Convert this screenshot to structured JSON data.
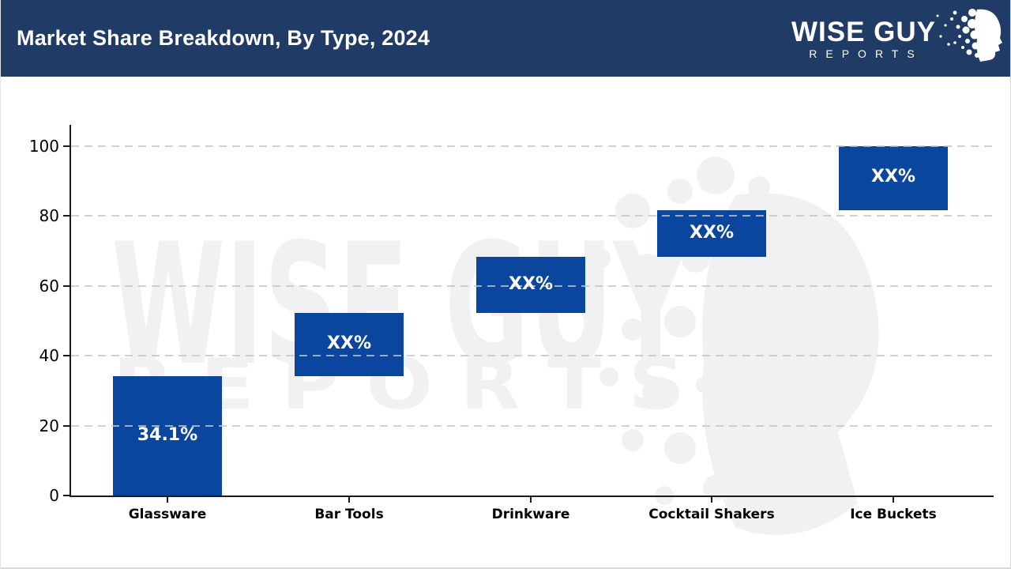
{
  "header": {
    "title": "Market Share Breakdown, By Type, 2024",
    "brand": {
      "line1": "WISE GUY",
      "line2": "REPORTS"
    },
    "bg_color": "#1f3b66"
  },
  "watermark": {
    "line1": "WISE GUY",
    "line2": "R E P O R T S"
  },
  "chart_data": {
    "type": "bar",
    "subtype": "waterfall",
    "title": "Market Share Breakdown, By Type, 2024",
    "categories": [
      "Glassware",
      "Bar Tools",
      "Drinkware",
      "Cocktail Shakers",
      "Ice Buckets"
    ],
    "bar_labels": [
      "34.1%",
      "XX%",
      "XX%",
      "XX%",
      "XX%"
    ],
    "starts": [
      0,
      34.1,
      52.2,
      68.3,
      81.7
    ],
    "values": [
      34.1,
      18.1,
      16.1,
      13.4,
      18.3
    ],
    "ylim": [
      0,
      100
    ],
    "yticks": [
      0,
      20,
      40,
      60,
      80,
      100
    ],
    "grid": "horizontal-dashed",
    "legend": "none",
    "bar_color": "#0b469e",
    "bar_label_color": "#ffffff",
    "xlabel": "",
    "ylabel": ""
  }
}
